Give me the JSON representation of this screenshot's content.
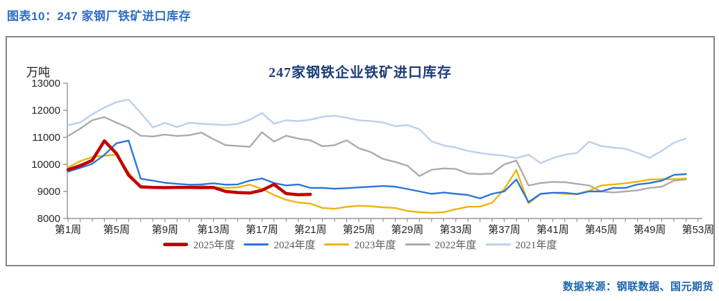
{
  "header": {
    "title": "图表10：247 家钢厂铁矿进口库存"
  },
  "chart": {
    "title": "247家钢铁企业铁矿进口库存",
    "unit_label": "万吨"
  },
  "source": {
    "text": "数据来源：钢联数据、国元期货"
  },
  "chart_data": {
    "type": "line",
    "title": "247家钢铁企业铁矿进口库存",
    "ylabel": "万吨",
    "ylim": [
      8000,
      13000
    ],
    "y_ticks": [
      8000,
      9000,
      10000,
      11000,
      12000,
      13000
    ],
    "x_range": [
      1,
      53
    ],
    "x_tick_weeks": [
      1,
      5,
      9,
      13,
      17,
      21,
      25,
      29,
      33,
      37,
      41,
      45,
      49,
      53
    ],
    "x_tick_labels": [
      "第1周",
      "第5周",
      "第9周",
      "第13周",
      "第17周",
      "第21周",
      "第25周",
      "第29周",
      "第33周",
      "第37周",
      "第41周",
      "第45周",
      "第49周",
      "第53周"
    ],
    "grid": false,
    "legend_position": "bottom",
    "axis_color": "#7f7f7f",
    "series": [
      {
        "name": "2025年度",
        "color": "#C00000",
        "line_width": 4.5,
        "start_week": 1,
        "values": [
          9800,
          9950,
          10150,
          10870,
          10400,
          9600,
          9170,
          9150,
          9140,
          9150,
          9150,
          9140,
          9150,
          9000,
          8960,
          8940,
          9040,
          9260,
          8920,
          8880,
          8890
        ]
      },
      {
        "name": "2024年度",
        "color": "#2B74D9",
        "line_width": 2.4,
        "start_week": 1,
        "values": [
          9730,
          9870,
          10020,
          10350,
          10780,
          10880,
          9470,
          9400,
          9320,
          9280,
          9250,
          9260,
          9300,
          9250,
          9260,
          9400,
          9480,
          9310,
          9220,
          9260,
          9130,
          9130,
          9100,
          9120,
          9150,
          9175,
          9200,
          9175,
          9090,
          9000,
          8910,
          8960,
          8910,
          8870,
          8740,
          8910,
          9000,
          9440,
          8605,
          8910,
          8950,
          8950,
          8900,
          9000,
          9000,
          9130,
          9130,
          9260,
          9310,
          9400,
          9610,
          9640
        ]
      },
      {
        "name": "2023年度",
        "color": "#EFB30F",
        "line_width": 2.4,
        "start_week": 1,
        "values": [
          9880,
          10120,
          10270,
          10320,
          10360,
          9700,
          9130,
          9150,
          9150,
          9175,
          9180,
          9200,
          9160,
          9130,
          9150,
          9250,
          9090,
          8870,
          8690,
          8590,
          8550,
          8390,
          8360,
          8430,
          8470,
          8450,
          8410,
          8390,
          8280,
          8230,
          8210,
          8230,
          8340,
          8430,
          8440,
          8580,
          9090,
          9790,
          8560,
          8910,
          8950,
          8910,
          8910,
          9020,
          9220,
          9260,
          9300,
          9360,
          9440,
          9450,
          9450,
          9480
        ]
      },
      {
        "name": "2022年度",
        "color": "#ABABAB",
        "line_width": 2.4,
        "start_week": 1,
        "values": [
          11050,
          11320,
          11630,
          11750,
          11540,
          11350,
          11060,
          11030,
          11100,
          11050,
          11080,
          11175,
          10930,
          10710,
          10680,
          10650,
          11190,
          10840,
          11060,
          10950,
          10890,
          10670,
          10710,
          10890,
          10600,
          10450,
          10200,
          10090,
          9950,
          9570,
          9800,
          9850,
          9830,
          9660,
          9640,
          9660,
          10000,
          10140,
          9220,
          9310,
          9350,
          9340,
          9280,
          9220,
          9000,
          8960,
          9000,
          9040,
          9130,
          9175,
          9395,
          9440
        ]
      },
      {
        "name": "2021年度",
        "color": "#BDCFEE",
        "line_width": 2.4,
        "start_week": 1,
        "values": [
          11450,
          11550,
          11850,
          12100,
          12300,
          12400,
          11900,
          11370,
          11530,
          11380,
          11540,
          11500,
          11480,
          11450,
          11500,
          11650,
          11900,
          11500,
          11630,
          11600,
          11650,
          11760,
          11800,
          11720,
          11630,
          11600,
          11550,
          11410,
          11450,
          11300,
          10850,
          10700,
          10620,
          10500,
          10420,
          10360,
          10320,
          10230,
          10360,
          10050,
          10230,
          10360,
          10420,
          10840,
          10680,
          10620,
          10580,
          10420,
          10240,
          10500,
          10800,
          10960
        ]
      }
    ]
  }
}
